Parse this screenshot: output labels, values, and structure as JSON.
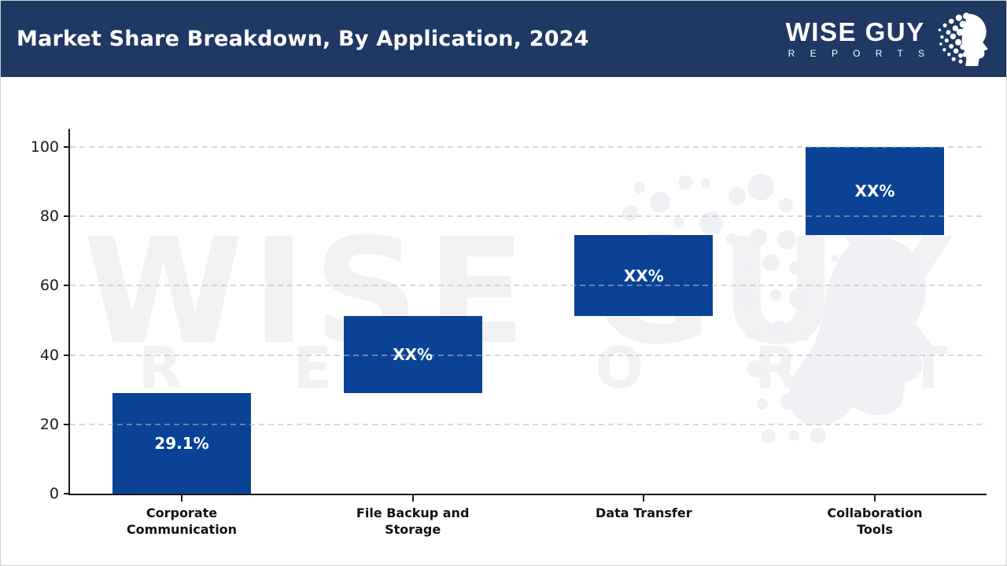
{
  "header": {
    "title": "Market Share Breakdown, By Application, 2024",
    "logo": {
      "wordmark": "WISE GUY",
      "subtext": "R E P O R T S"
    }
  },
  "watermark": {
    "wordmark": "WISE GUY",
    "subtext": "R E P O R T S"
  },
  "colors": {
    "header_bg": "#1f3864",
    "bar": "#0a4296",
    "bar_label": "#ffffff",
    "axis": "#1a1a1a",
    "gridline": "#bdbdbd",
    "watermark": "#f2f2f4",
    "page_bg": "#ffffff",
    "page_border": "#cfcfcf"
  },
  "chart_data": {
    "type": "bar",
    "variant": "floating-waterfall",
    "title": "Market Share Breakdown, By Application, 2024",
    "categories": [
      "Corporate\nCommunication",
      "File Backup and\nStorage",
      "Data Transfer",
      "Collaboration\nTools"
    ],
    "segments": [
      {
        "category": "Corporate Communication",
        "start": 0,
        "end": 29.1,
        "label": "29.1%"
      },
      {
        "category": "File Backup and Storage",
        "start": 29.1,
        "end": 51.2,
        "label": "XX%"
      },
      {
        "category": "Data Transfer",
        "start": 51.2,
        "end": 74.6,
        "label": "XX%"
      },
      {
        "category": "Collaboration Tools",
        "start": 74.6,
        "end": 100,
        "label": "XX%"
      }
    ],
    "yticks": [
      0,
      20,
      40,
      60,
      80,
      100
    ],
    "ylim": [
      0,
      100
    ],
    "xlabel": "",
    "ylabel": "",
    "grid": "horizontal-dashed",
    "legend": false
  }
}
